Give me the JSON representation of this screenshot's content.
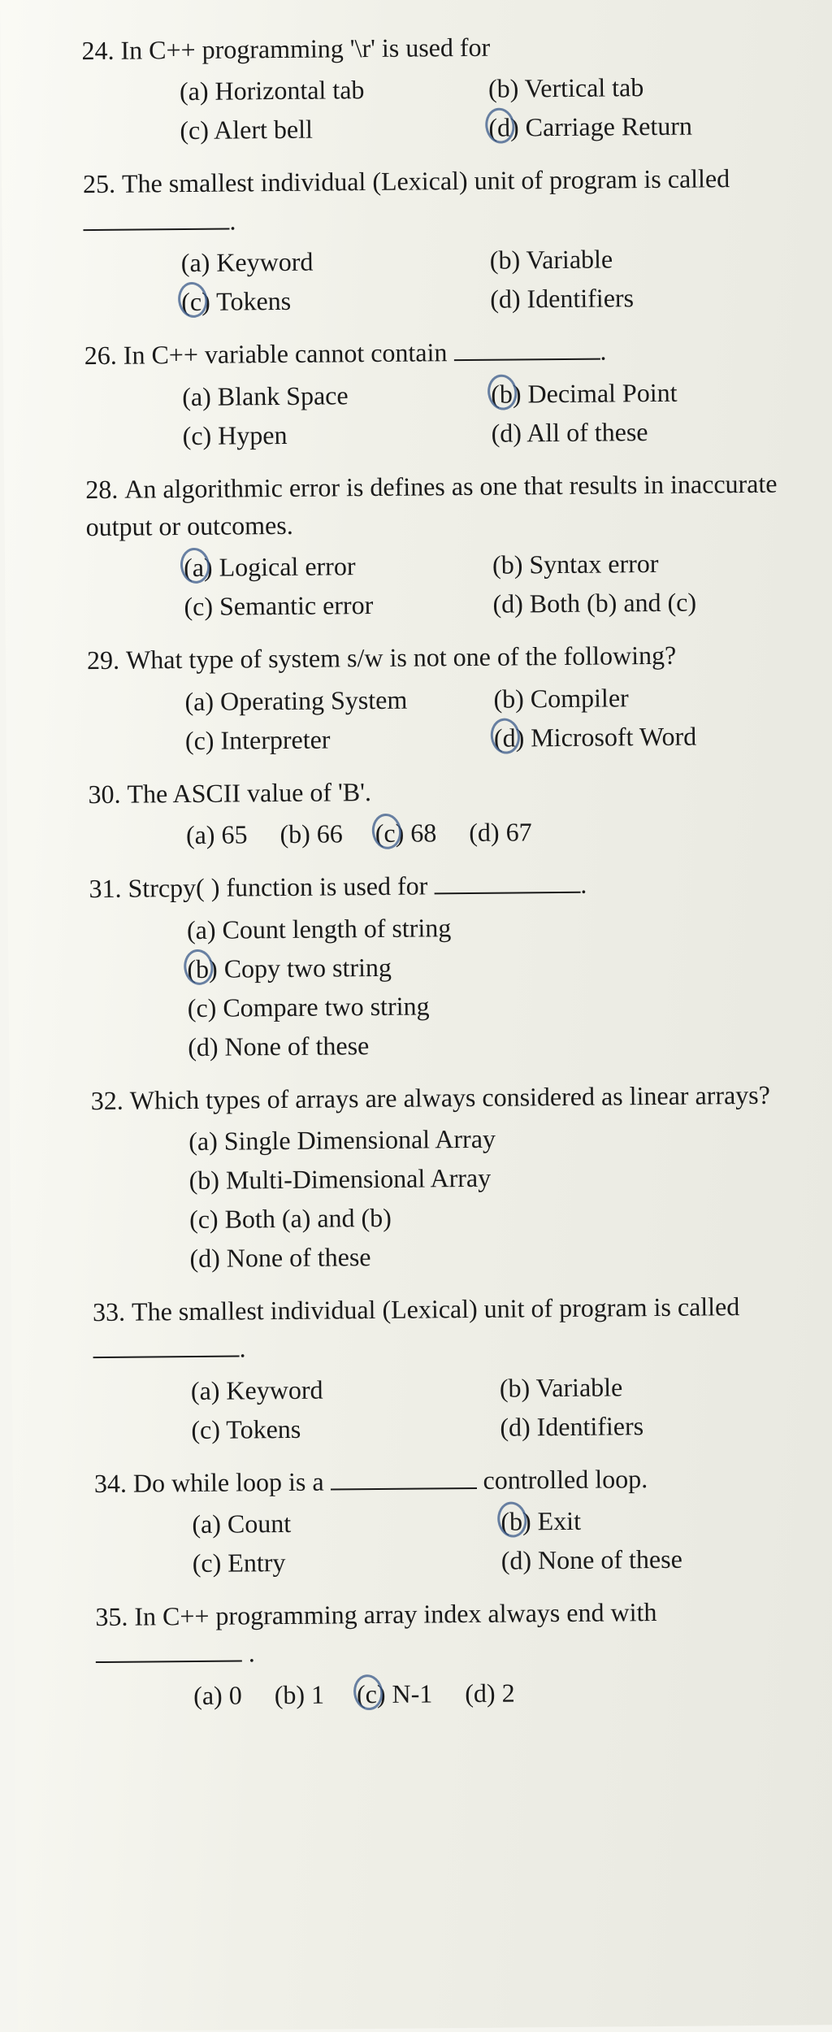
{
  "page": {
    "background_color": "#f5f5f0",
    "text_color": "#1a1a1a",
    "mark_color": "#3a5a8a",
    "font_family": "Georgia, serif",
    "base_font_size": 32
  },
  "questions": [
    {
      "number": "24.",
      "text": "In C++ programming '\\r' is used for",
      "layout": "grid2",
      "marked": "d",
      "options": [
        {
          "label": "(a)",
          "text": "Horizontal tab"
        },
        {
          "label": "(b)",
          "text": "Vertical tab"
        },
        {
          "label": "(c)",
          "text": "Alert bell"
        },
        {
          "label": "(d)",
          "text": "Carriage Return"
        }
      ]
    },
    {
      "number": "25.",
      "text": "The smallest individual (Lexical) unit of program is called",
      "blank_after": true,
      "layout": "grid2",
      "marked": "c",
      "options": [
        {
          "label": "(a)",
          "text": "Keyword"
        },
        {
          "label": "(b)",
          "text": "Variable"
        },
        {
          "label": "(c)",
          "text": "Tokens"
        },
        {
          "label": "(d)",
          "text": "Identifiers"
        }
      ]
    },
    {
      "number": "26.",
      "text": "In C++ variable cannot contain",
      "blank_after": true,
      "layout": "grid2",
      "marked": "b",
      "options": [
        {
          "label": "(a)",
          "text": "Blank Space"
        },
        {
          "label": "(b)",
          "text": "Decimal Point"
        },
        {
          "label": "(c)",
          "text": "Hypen"
        },
        {
          "label": "(d)",
          "text": "All of these"
        }
      ]
    },
    {
      "number": "28.",
      "text": "An algorithmic error is defines as one that results in inaccurate output or outcomes.",
      "layout": "grid2",
      "marked": "a",
      "options": [
        {
          "label": "(a)",
          "text": "Logical error"
        },
        {
          "label": "(b)",
          "text": "Syntax error"
        },
        {
          "label": "(c)",
          "text": "Semantic error"
        },
        {
          "label": "(d)",
          "text": "Both (b) and (c)"
        }
      ]
    },
    {
      "number": "29.",
      "text": "What type of system s/w is not one of the following?",
      "layout": "grid2",
      "marked": "d",
      "options": [
        {
          "label": "(a)",
          "text": "Operating System"
        },
        {
          "label": "(b)",
          "text": "Compiler"
        },
        {
          "label": "(c)",
          "text": "Interpreter"
        },
        {
          "label": "(d)",
          "text": "Microsoft Word"
        }
      ]
    },
    {
      "number": "30.",
      "text": "The ASCII value of 'B'.",
      "layout": "inline4",
      "marked": "c",
      "options": [
        {
          "label": "(a)",
          "text": "65"
        },
        {
          "label": "(b)",
          "text": "66"
        },
        {
          "label": "(c)",
          "text": "68"
        },
        {
          "label": "(d)",
          "text": "67"
        }
      ]
    },
    {
      "number": "31.",
      "text": "Strcpy( ) function is used for",
      "blank_after": true,
      "layout": "list",
      "marked": "b",
      "options": [
        {
          "label": "(a)",
          "text": "Count length of string"
        },
        {
          "label": "(b)",
          "text": "Copy two string"
        },
        {
          "label": "(c)",
          "text": "Compare two string"
        },
        {
          "label": "(d)",
          "text": "None of these"
        }
      ]
    },
    {
      "number": "32.",
      "text": "Which types of arrays are always considered as linear arrays?",
      "layout": "list",
      "options": [
        {
          "label": "(a)",
          "text": "Single Dimensional Array"
        },
        {
          "label": "(b)",
          "text": "Multi-Dimensional Array"
        },
        {
          "label": "(c)",
          "text": "Both (a) and (b)"
        },
        {
          "label": "(d)",
          "text": "None of these"
        }
      ]
    },
    {
      "number": "33.",
      "text": "The smallest individual (Lexical) unit of program is called",
      "blank_after": true,
      "layout": "grid2",
      "options": [
        {
          "label": "(a)",
          "text": "Keyword"
        },
        {
          "label": "(b)",
          "text": "Variable"
        },
        {
          "label": "(c)",
          "text": "Tokens"
        },
        {
          "label": "(d)",
          "text": "Identifiers"
        }
      ]
    },
    {
      "number": "34.",
      "text_before": "Do while loop is a",
      "text_after": "controlled loop.",
      "blank_mid": true,
      "layout": "grid2",
      "marked": "b",
      "options": [
        {
          "label": "(a)",
          "text": "Count"
        },
        {
          "label": "(b)",
          "text": "Exit"
        },
        {
          "label": "(c)",
          "text": "Entry"
        },
        {
          "label": "(d)",
          "text": "None of these"
        }
      ]
    },
    {
      "number": "35.",
      "text_before": "In C++ programming array index always end with",
      "blank_mid": true,
      "text_after": ".",
      "layout": "inline4",
      "marked": "c",
      "options": [
        {
          "label": "(a)",
          "text": "0"
        },
        {
          "label": "(b)",
          "text": "1"
        },
        {
          "label": "(c)",
          "text": "N-1"
        },
        {
          "label": "(d)",
          "text": "2"
        }
      ]
    }
  ]
}
